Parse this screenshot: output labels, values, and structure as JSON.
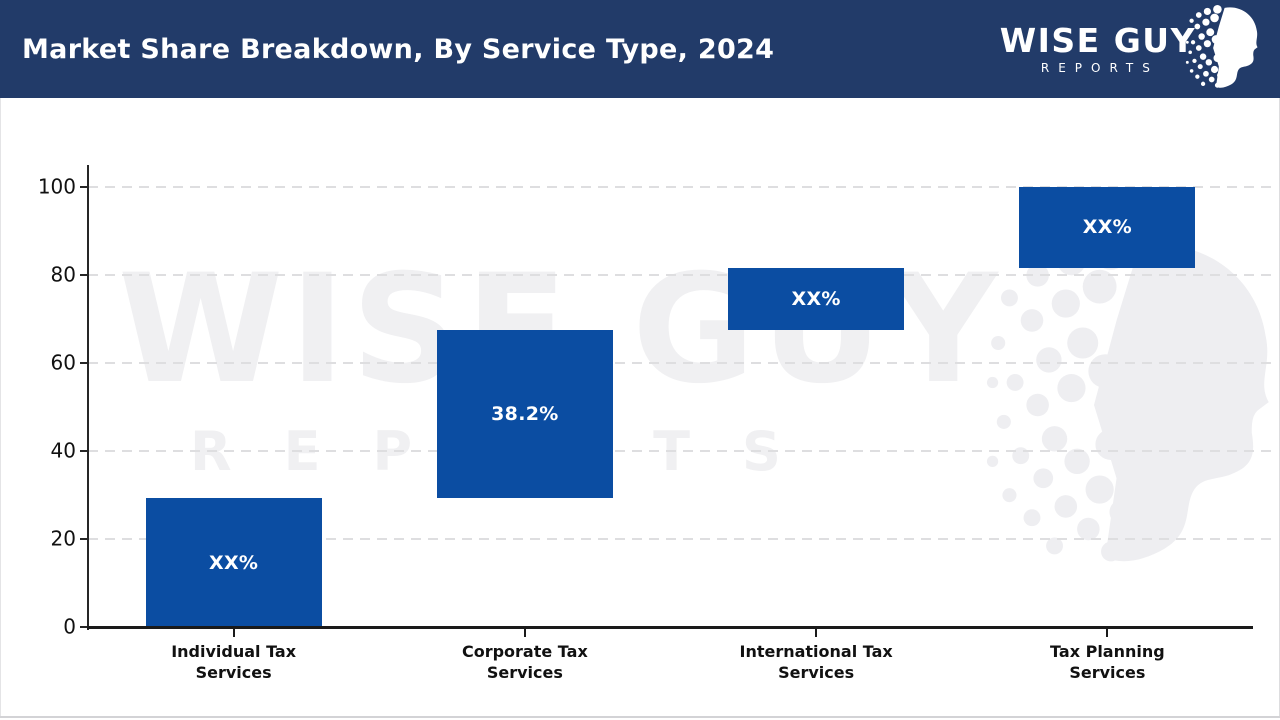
{
  "header": {
    "title": "Market Share Breakdown, By Service Type, 2024",
    "logo": {
      "line1": "WISE GUY",
      "line2": "REPORTS"
    }
  },
  "watermark": {
    "line1": "WISE GUY",
    "line2": "REPORTS"
  },
  "chart_data": {
    "type": "bar",
    "subtype": "waterfall-breakdown",
    "title": "Market Share Breakdown, By Service Type, 2024",
    "categories": [
      "Individual Tax\nServices",
      "Corporate Tax\nServices",
      "International Tax\nServices",
      "Tax Planning\nServices"
    ],
    "segments": [
      {
        "category": "Individual Tax Services",
        "start": 0,
        "end": 29.3,
        "value": 29.3,
        "label": "XX%"
      },
      {
        "category": "Corporate Tax Services",
        "start": 29.3,
        "end": 67.5,
        "value": 38.2,
        "label": "38.2%"
      },
      {
        "category": "International Tax Services",
        "start": 67.5,
        "end": 81.7,
        "value": 14.2,
        "label": "XX%"
      },
      {
        "category": "Tax Planning Services",
        "start": 81.7,
        "end": 100,
        "value": 18.3,
        "label": "XX%"
      }
    ],
    "xlabel": "",
    "ylabel": "",
    "ylim": [
      0,
      100
    ],
    "yticks": [
      0,
      20,
      40,
      60,
      80,
      100
    ],
    "grid": "horizontal-dashed",
    "legend": "none",
    "colors": {
      "header_bg": "#223b69",
      "bar": "#0b4da2",
      "bar_label": "#ffffff",
      "axis": "#262626",
      "gridline": "#dedee0",
      "tick_label": "#111111",
      "watermark": "#f0f0f2",
      "title_text": "#ffffff"
    }
  }
}
